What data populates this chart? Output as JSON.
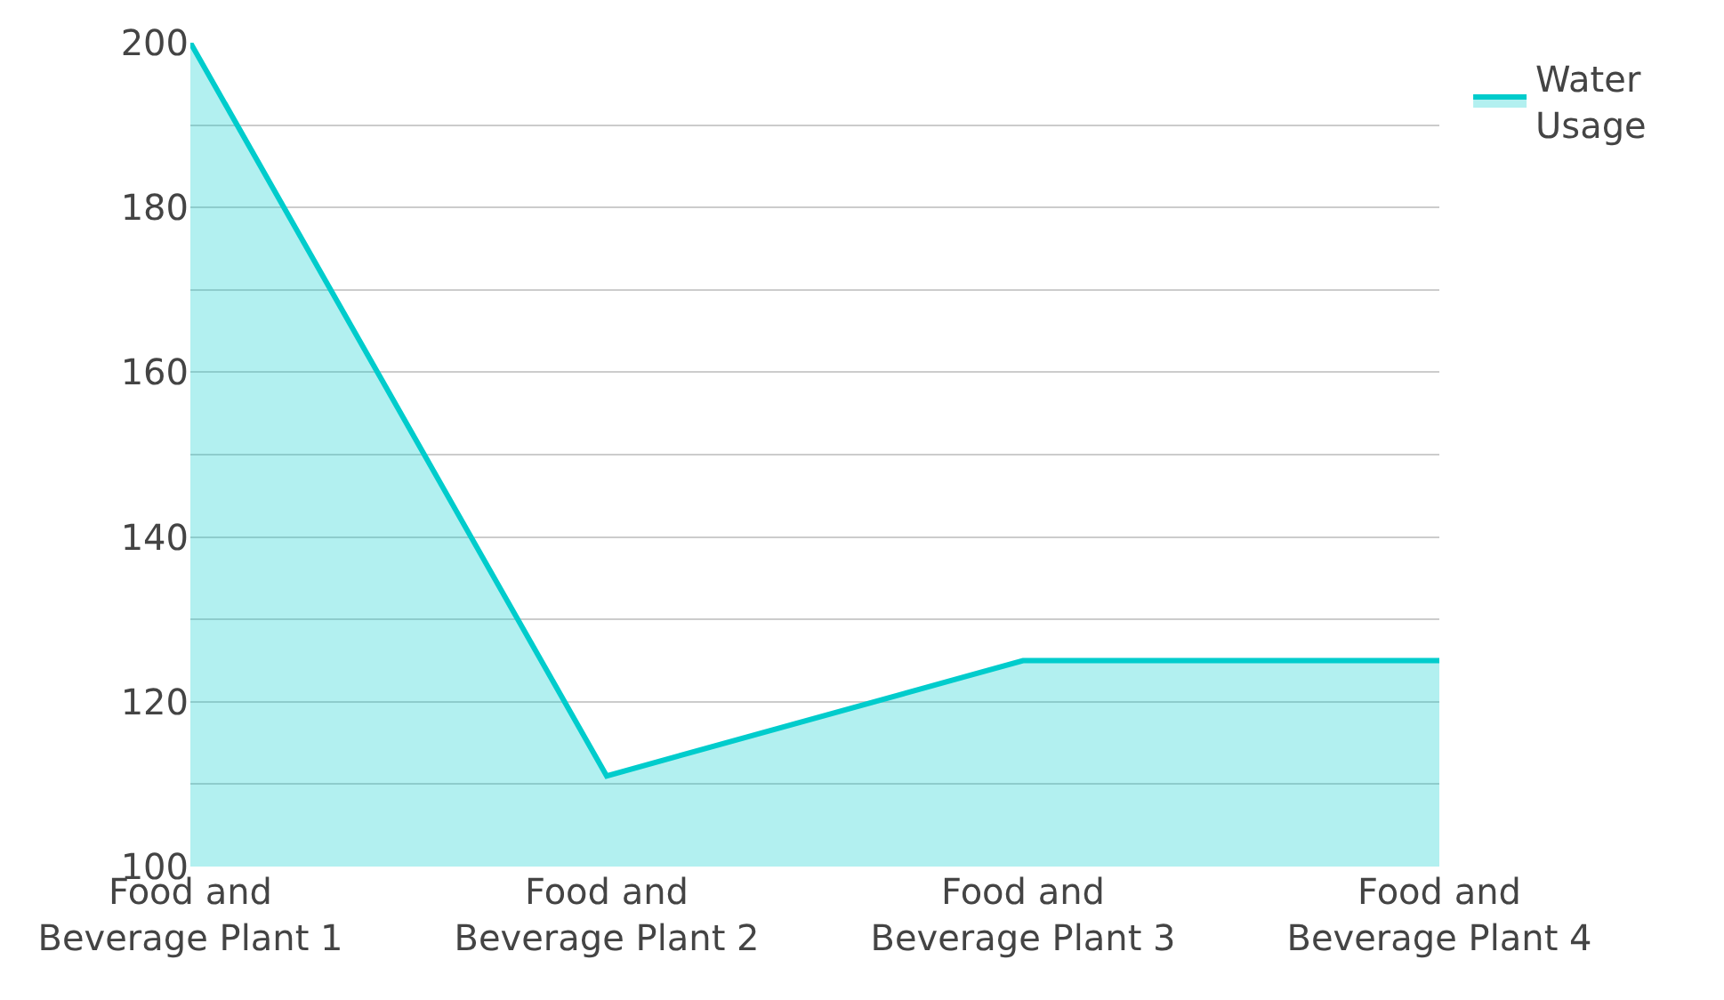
{
  "chart_data": {
    "type": "area",
    "categories": [
      "Food and Beverage Plant 1",
      "Food and Beverage Plant 2",
      "Food and Beverage Plant 3",
      "Food and Beverage Plant 4"
    ],
    "series": [
      {
        "name": "Water Usage",
        "color": "#00cccc",
        "values": [
          200,
          111,
          125,
          125
        ]
      }
    ],
    "ylim": [
      100,
      200
    ],
    "yticks": [
      100,
      {
        "value": 110,
        "label": null
      },
      120,
      {
        "value": 130,
        "label": null
      },
      140,
      {
        "value": 150,
        "label": null
      },
      160,
      {
        "value": 170,
        "label": null
      },
      180,
      {
        "value": 190,
        "label": null
      },
      200
    ],
    "grid": "y",
    "legend": "top right",
    "marker": "none",
    "line_style": "solid"
  }
}
